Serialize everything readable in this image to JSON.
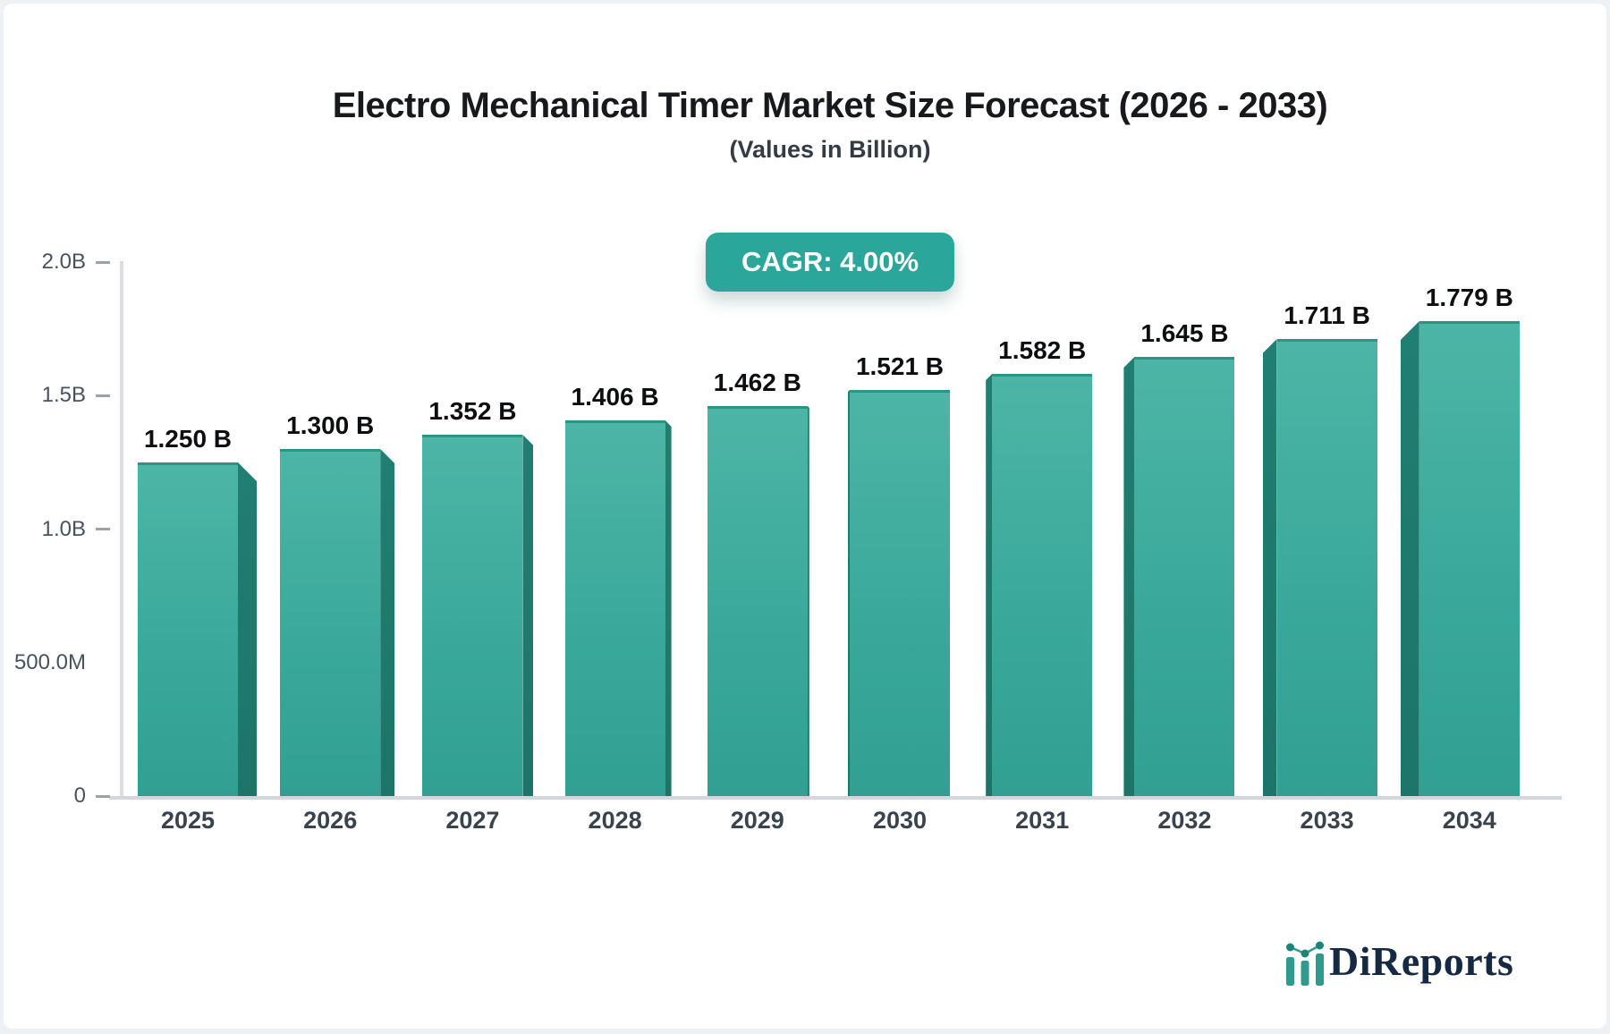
{
  "page": {
    "title": "Electro Mechanical Timer Market Size Forecast (2026 - 2033)",
    "subtitle": "(Values in Billion)",
    "cagr_badge": "CAGR: 4.00%"
  },
  "chart_data": {
    "type": "bar",
    "title": "Electro Mechanical Timer Market Size Forecast (2026 - 2033)",
    "subtitle": "(Values in Billion)",
    "annotation": "CAGR: 4.00%",
    "categories": [
      "2025",
      "2026",
      "2027",
      "2028",
      "2029",
      "2030",
      "2031",
      "2032",
      "2033",
      "2034"
    ],
    "values": [
      1.25,
      1.3,
      1.352,
      1.406,
      1.462,
      1.521,
      1.582,
      1.645,
      1.711,
      1.779
    ],
    "value_labels": [
      "1.250 B",
      "1.300 B",
      "1.352 B",
      "1.406 B",
      "1.462 B",
      "1.521 B",
      "1.582 B",
      "1.645 B",
      "1.711 B",
      "1.779 B"
    ],
    "xlabel": "",
    "ylabel": "",
    "ylim": [
      0,
      2.0
    ],
    "grid": false,
    "legend": false,
    "y_ticks": [
      {
        "label": "2.0B",
        "value": 2.0,
        "dash": true
      },
      {
        "label": "1.5B",
        "value": 1.5,
        "dash": true
      },
      {
        "label": "1.0B",
        "value": 1.0,
        "dash": true
      },
      {
        "label": "500.0M",
        "value": 0.5,
        "dash": false
      },
      {
        "label": "0",
        "value": 0.0,
        "dash": true
      }
    ]
  },
  "logo": {
    "text": "DiReports",
    "icon": "bar-line-chart-icon"
  },
  "colors": {
    "bar_face_top": "#4db5a6",
    "bar_face_bottom": "#31a092",
    "bar_side": "#1f7b6f",
    "badge_bg": "#2aa79a",
    "axis": "#d3d6da",
    "logo_teal": "#2e9b8e",
    "logo_navy": "#152a42",
    "page_bg": "#eef1f4"
  }
}
